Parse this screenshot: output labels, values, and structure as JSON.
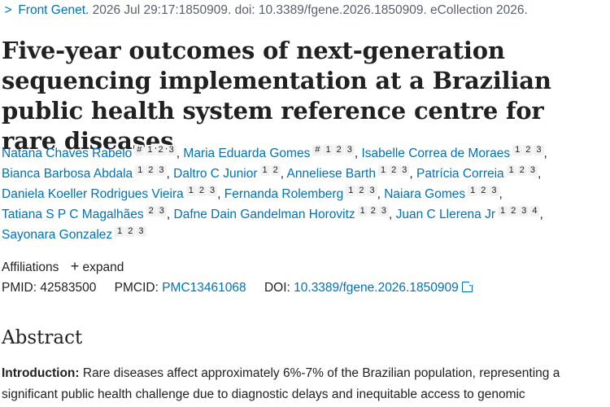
{
  "citation": {
    "chevron": ">",
    "journal": "Front Genet.",
    "details": " 2026 Jul 29:17:1850909. doi: 10.3389/fgene.2026.1850909. eCollection 2026."
  },
  "title": "Five-year outcomes of next-generation sequencing implementation at a Brazilian public health system reference centre for rare diseases",
  "authors": [
    {
      "name": "Natana Chaves Rabelo",
      "marks": [
        "#",
        "1",
        "2",
        "3"
      ]
    },
    {
      "name": "Maria Eduarda Gomes",
      "marks": [
        "#",
        "1",
        "2",
        "3"
      ]
    },
    {
      "name": "Isabelle Correa de Moraes",
      "marks": [
        "1",
        "2",
        "3"
      ]
    },
    {
      "name": "Bianca Barbosa Abdala",
      "marks": [
        "1",
        "2",
        "3"
      ]
    },
    {
      "name": "Daltro C Junior",
      "marks": [
        "1",
        "2"
      ]
    },
    {
      "name": "Anneliese Barth",
      "marks": [
        "1",
        "2",
        "3"
      ]
    },
    {
      "name": "Patrícia Correia",
      "marks": [
        "1",
        "2",
        "3"
      ]
    },
    {
      "name": "Daniela Koeller Rodrigues Vieira",
      "marks": [
        "1",
        "2",
        "3"
      ]
    },
    {
      "name": "Fernanda Rolemberg",
      "marks": [
        "1",
        "2",
        "3"
      ]
    },
    {
      "name": "Naiara Gomes",
      "marks": [
        "1",
        "2",
        "3"
      ]
    },
    {
      "name": "Tatiana S P C Magalhães",
      "marks": [
        "2",
        "3"
      ]
    },
    {
      "name": "Dafne Dain Gandelman Horovitz",
      "marks": [
        "1",
        "2",
        "3"
      ]
    },
    {
      "name": "Juan C Llerena Jr",
      "marks": [
        "1",
        "2",
        "3",
        "4"
      ]
    },
    {
      "name": "Sayonara Gonzalez",
      "marks": [
        "1",
        "2",
        "3"
      ]
    }
  ],
  "affiliations": {
    "label": "Affiliations",
    "expand_icon": "+",
    "expand_label": "expand"
  },
  "ids": {
    "pmid_label": "PMID:",
    "pmid": "42583500",
    "pmcid_label": "PMCID:",
    "pmcid": "PMC13461068",
    "doi_label": "DOI:",
    "doi": "10.3389/fgene.2026.1850909"
  },
  "abstract": {
    "heading": "Abstract",
    "intro_label": "Introduction:",
    "intro_text": " Rare diseases affect approximately 6%-7% of the Brazilian population, representing a significant public health challenge due to diagnostic delays and inequitable access to genomic"
  },
  "colors": {
    "link": "#0071bc",
    "text": "#212121",
    "muted": "#5b616b"
  }
}
